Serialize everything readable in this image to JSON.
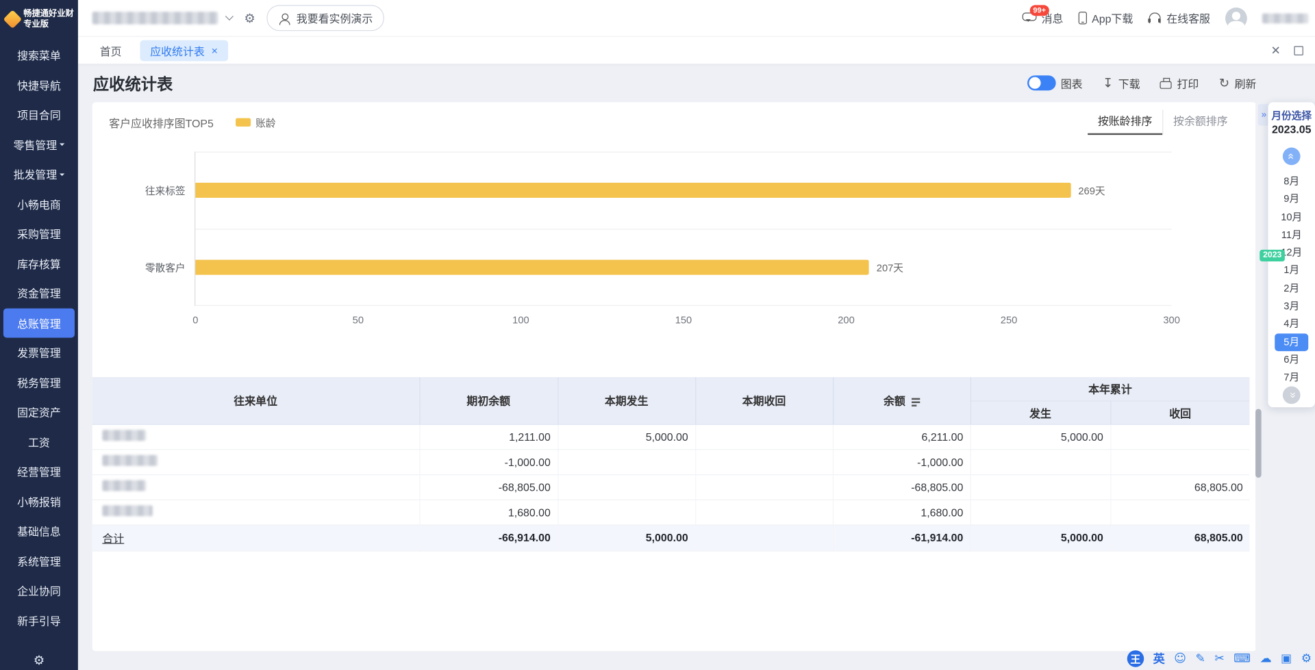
{
  "app": {
    "brand_line1": "畅捷通好业财",
    "brand_line2": "专业版"
  },
  "topbar": {
    "demo_label": "我要看实例演示",
    "messages_label": "消息",
    "messages_badge": "99+",
    "app_download_label": "App下载",
    "online_service_label": "在线客服"
  },
  "sidebar": {
    "items": [
      {
        "label": "搜索菜单"
      },
      {
        "label": "快捷导航"
      },
      {
        "label": "项目合同"
      },
      {
        "label": "零售管理",
        "expandable": true
      },
      {
        "label": "批发管理",
        "expandable": true
      },
      {
        "label": "小畅电商"
      },
      {
        "label": "采购管理"
      },
      {
        "label": "库存核算"
      },
      {
        "label": "资金管理"
      },
      {
        "label": "总账管理",
        "active": true
      },
      {
        "label": "发票管理"
      },
      {
        "label": "税务管理"
      },
      {
        "label": "固定资产"
      },
      {
        "label": "工资"
      },
      {
        "label": "经营管理"
      },
      {
        "label": "小畅报销"
      },
      {
        "label": "基础信息"
      },
      {
        "label": "系统管理"
      },
      {
        "label": "企业协同"
      },
      {
        "label": "新手引导"
      }
    ]
  },
  "tabs": [
    {
      "label": "首页",
      "active": false
    },
    {
      "label": "应收统计表",
      "active": true,
      "closable": true
    }
  ],
  "page": {
    "title": "应收统计表",
    "tools": {
      "chart_toggle": "图表",
      "download": "下载",
      "print": "打印",
      "refresh": "刷新"
    }
  },
  "chart": {
    "sort_tabs": [
      {
        "label": "按账龄排序",
        "active": true
      },
      {
        "label": "按余额排序",
        "active": false
      }
    ]
  },
  "chart_data": {
    "type": "bar",
    "orientation": "horizontal",
    "title": "客户应收排序图TOP5",
    "legend": [
      "账龄"
    ],
    "categories": [
      "往来标签",
      "零散客户"
    ],
    "values": [
      269,
      207
    ],
    "unit": "天",
    "value_labels": [
      "269天",
      "207天"
    ],
    "x_ticks": [
      0,
      50,
      100,
      150,
      200,
      250,
      300
    ],
    "xlim": [
      0,
      300
    ],
    "bar_color": "#f3c34d",
    "grid": true,
    "legend_position": "top-left"
  },
  "table": {
    "columns": [
      "往来单位",
      "期初余额",
      "本期发生",
      "本期收回",
      "余额",
      "发生",
      "收回"
    ],
    "group_header": "本年累计",
    "rows": [
      {
        "opening": "1,211.00",
        "current": "5,000.00",
        "received": "",
        "balance": "6,211.00",
        "ytd_occurred": "5,000.00",
        "ytd_received": ""
      },
      {
        "opening": "-1,000.00",
        "current": "",
        "received": "",
        "balance": "-1,000.00",
        "ytd_occurred": "",
        "ytd_received": ""
      },
      {
        "opening": "-68,805.00",
        "current": "",
        "received": "",
        "balance": "-68,805.00",
        "ytd_occurred": "",
        "ytd_received": "68,805.00"
      },
      {
        "opening": "1,680.00",
        "current": "",
        "received": "",
        "balance": "1,680.00",
        "ytd_occurred": "",
        "ytd_received": ""
      }
    ],
    "total": {
      "label": "合计",
      "opening": "-66,914.00",
      "current": "5,000.00",
      "received": "",
      "balance": "-61,914.00",
      "ytd_occurred": "5,000.00",
      "ytd_received": "68,805.00"
    }
  },
  "month_panel": {
    "title": "月份选择",
    "current": "2023.05",
    "year_badge": "2023",
    "months": [
      "8月",
      "9月",
      "10月",
      "11月",
      "12月",
      "1月",
      "2月",
      "3月",
      "4月",
      "5月",
      "6月",
      "7月"
    ],
    "active_month": "5月"
  },
  "ime": {
    "logo": "王",
    "lang": "英"
  },
  "colors": {
    "sidebar_bg": "#1e2a47",
    "accent_blue": "#4c7bf0",
    "active_tab_bg": "#dcebfd",
    "bar_yellow": "#f3c34d",
    "badge_red": "#f5483b",
    "year_badge_green": "#3fd0a0",
    "active_month_blue": "#4c8cf5",
    "table_header_bg": "#e9edf8"
  }
}
